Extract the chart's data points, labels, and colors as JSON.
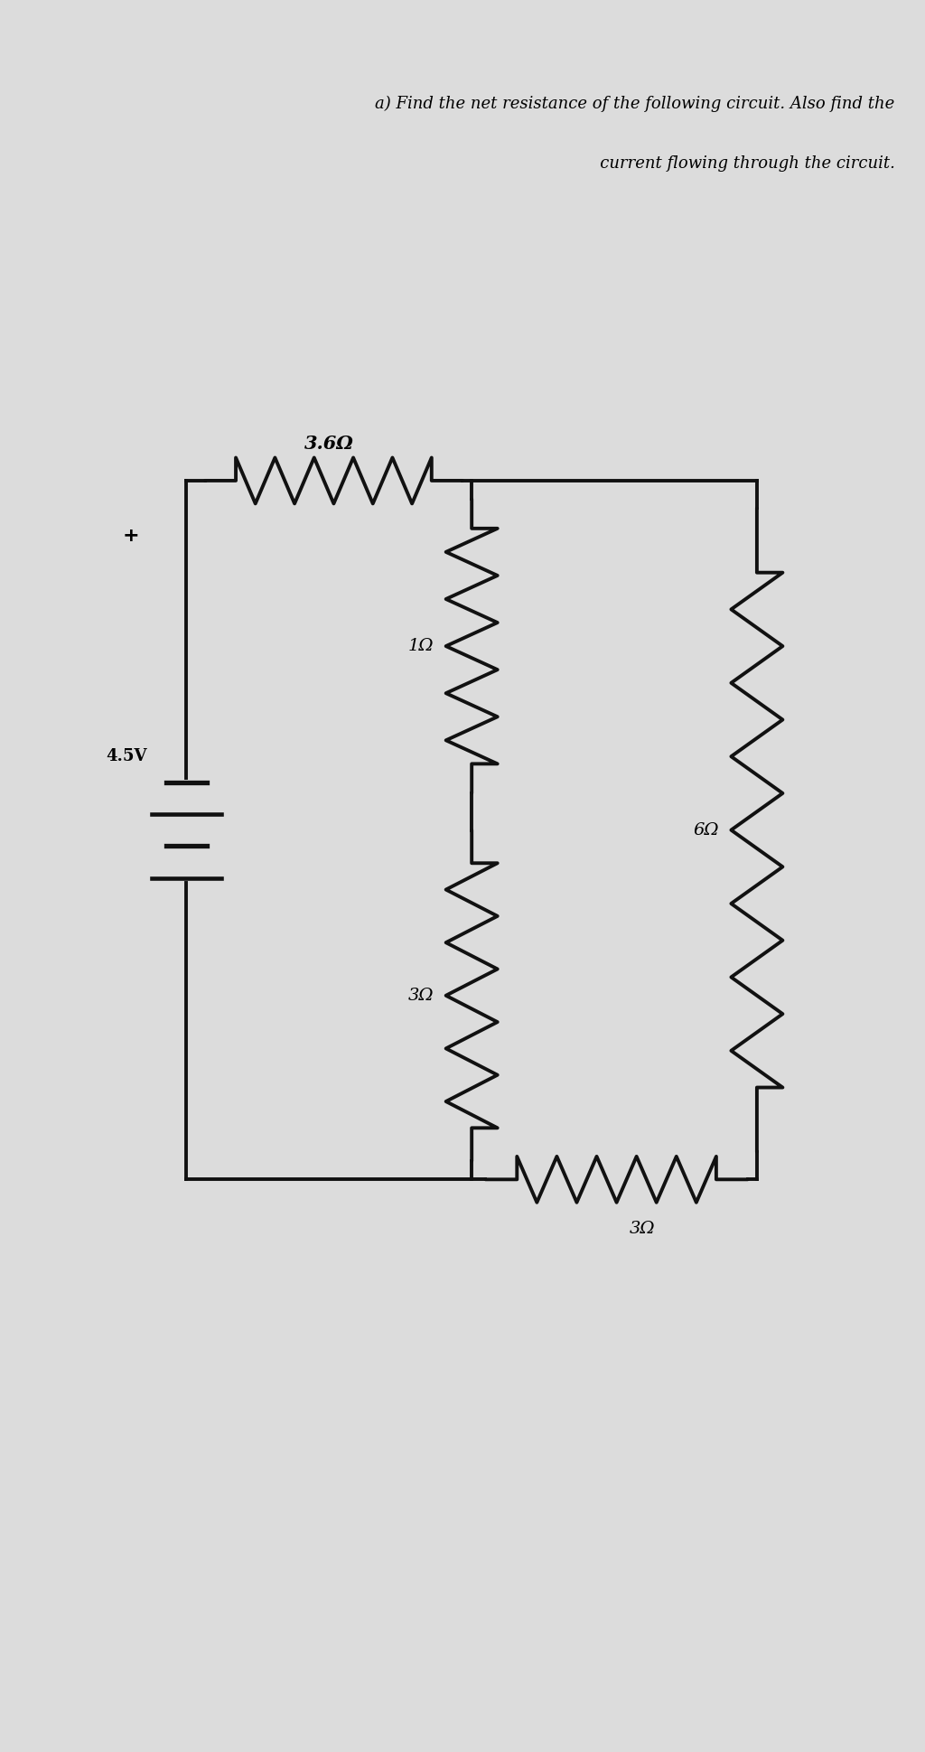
{
  "bg_color": "#dcdcdc",
  "line_color": "#111111",
  "line_width": 2.8,
  "title_line1": "a) Find the net resistance of the following circuit. Also find the",
  "title_line2": "   current flowing through the circuit.",
  "title_fontsize": 13,
  "battery_voltage": "4.5V",
  "battery_plus": "+",
  "R1_label": "3.6Ω",
  "R2_label": "1Ω",
  "R3_label": "3Ω",
  "R4_label": "6Ω",
  "R5_label": "3Ω",
  "OL": 2.0,
  "OR": 8.2,
  "OT": 13.8,
  "OB": 6.2,
  "PL": 5.1
}
